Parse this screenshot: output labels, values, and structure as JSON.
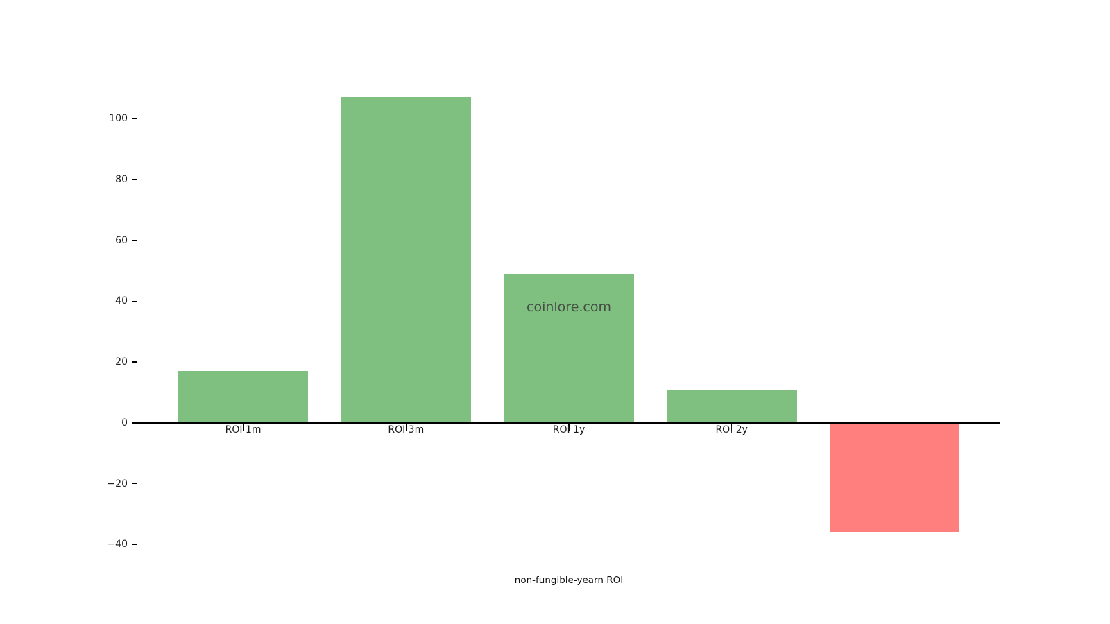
{
  "chart_data": {
    "type": "bar",
    "title": "",
    "xlabel": "non-fungible-yearn ROI",
    "ylabel": "",
    "watermark": "coinlore.com",
    "categories": [
      "ROI 1m",
      "ROI 3m",
      "ROI 1y",
      "ROI 2y",
      ""
    ],
    "values": [
      17,
      107,
      49,
      11,
      -36
    ],
    "positive_color": "#7fbf7f",
    "negative_color": "#ff7f7f",
    "axis_color": "#000000",
    "y_ticks": [
      100,
      80,
      60,
      40,
      20,
      0,
      -20,
      -40
    ],
    "ylim": [
      -43.8,
      114.4
    ],
    "xlim": [
      -0.65,
      4.65
    ],
    "bar_width": 0.8,
    "grid": false,
    "legend": "none",
    "background": "#ffffff"
  }
}
